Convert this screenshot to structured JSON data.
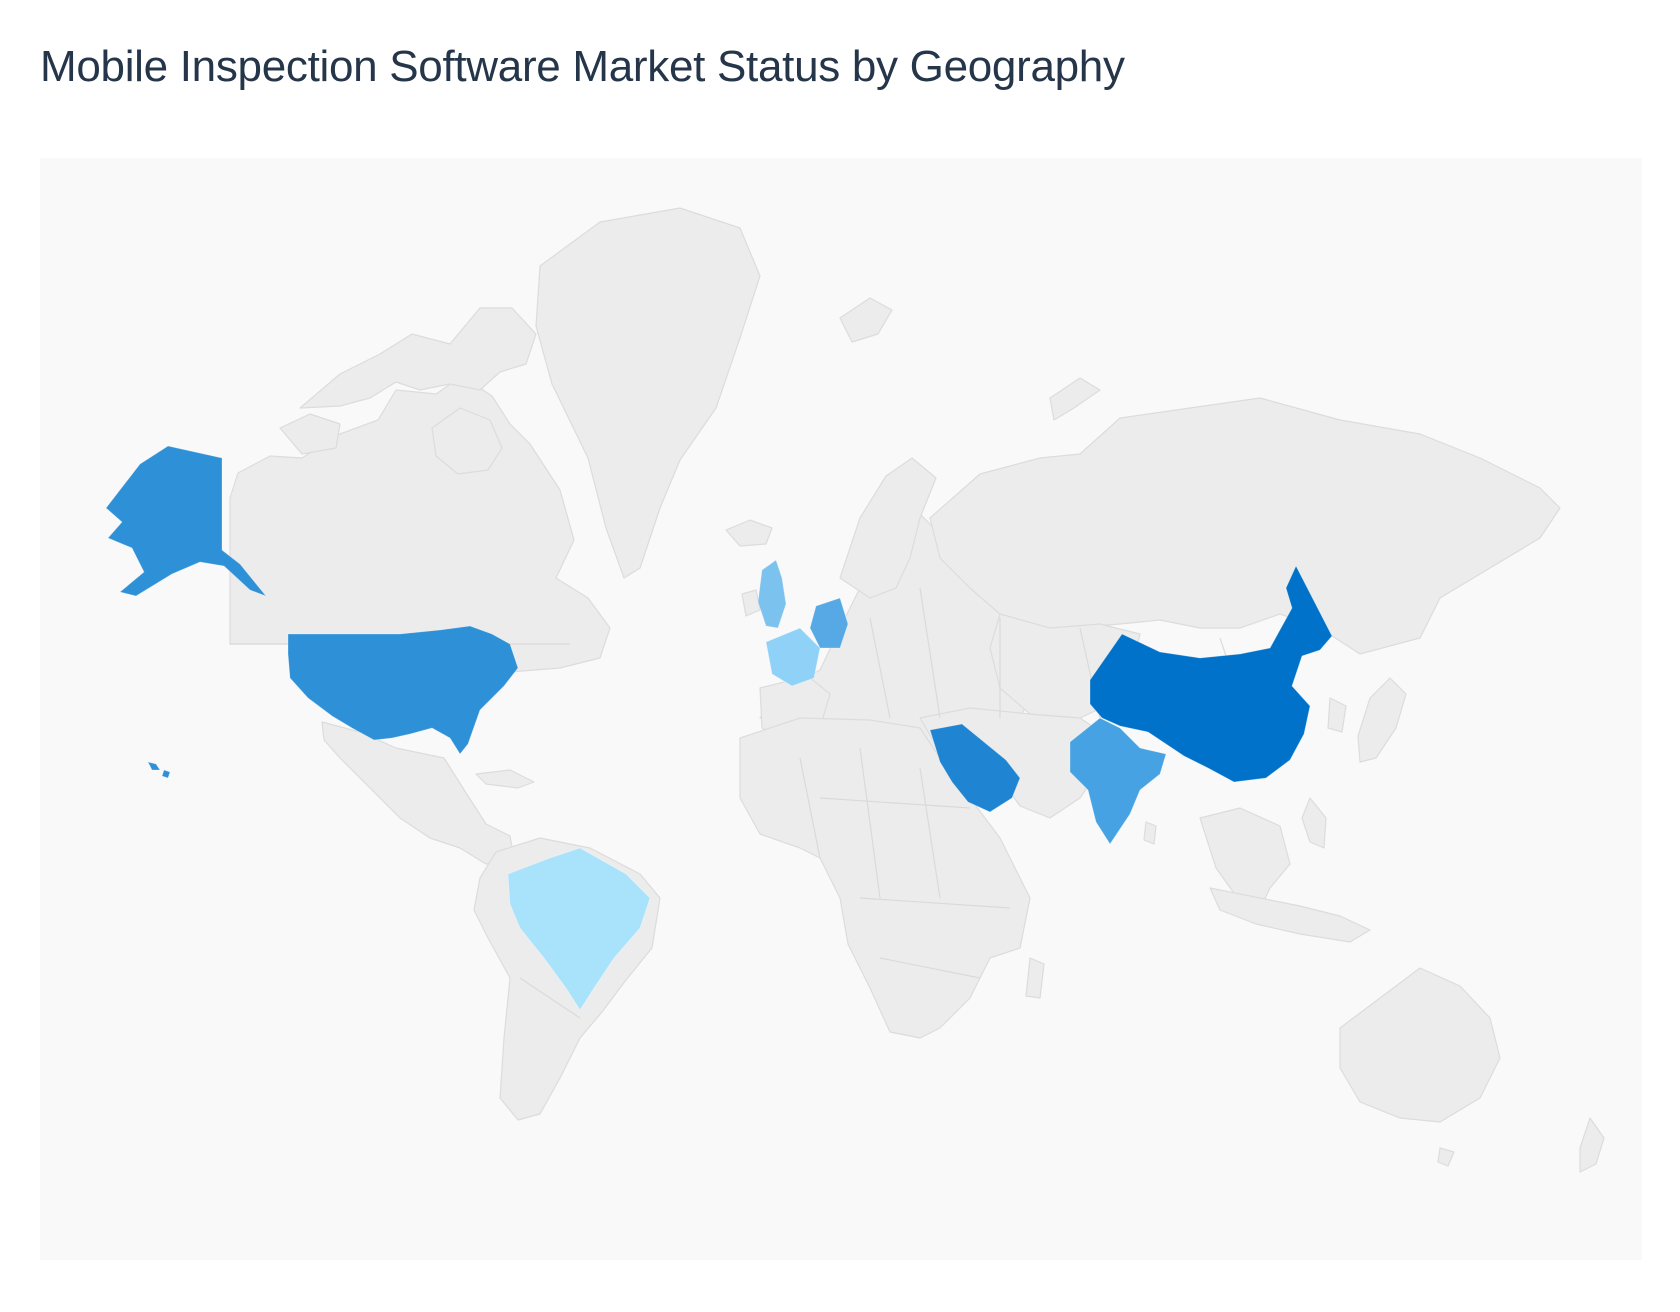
{
  "title": "Mobile Inspection Software Market Status by Geography",
  "map": {
    "background_color": "#f9f9f9",
    "land_color": "#ececec",
    "border_color": "#dcdcdc",
    "highlighted_regions": [
      {
        "region": "United States",
        "color": "#2e90d6"
      },
      {
        "region": "China",
        "color": "#0072c9"
      },
      {
        "region": "Saudi Arabia",
        "color": "#1f84d1"
      },
      {
        "region": "India",
        "color": "#46a2e2"
      },
      {
        "region": "Germany",
        "color": "#57a9e5"
      },
      {
        "region": "United Kingdom",
        "color": "#7cc2ef"
      },
      {
        "region": "France",
        "color": "#90d2f7"
      },
      {
        "region": "Brazil",
        "color": "#a8e2fb"
      }
    ]
  }
}
